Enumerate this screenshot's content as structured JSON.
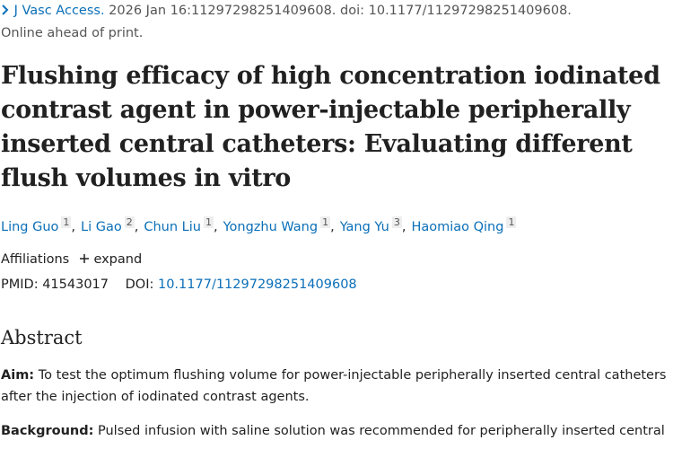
{
  "citation": {
    "journal": "J Vasc Access.",
    "details": "2026 Jan 16:11297298251409608. doi: 10.1177/11297298251409608."
  },
  "status": "Online ahead of print.",
  "title": "Flushing efficacy of high concentration iodinated contrast agent in power-injectable peripherally inserted central catheters: Evaluating different flush volumes in vitro",
  "authors": {
    "separator": ",",
    "list": [
      {
        "name": "Ling Guo",
        "aff": "1"
      },
      {
        "name": "Li Gao",
        "aff": "2"
      },
      {
        "name": "Chun Liu",
        "aff": "1"
      },
      {
        "name": "Yongzhu Wang",
        "aff": "1"
      },
      {
        "name": "Yang Yu",
        "aff": "3"
      },
      {
        "name": "Haomiao Qing",
        "aff": "1"
      }
    ]
  },
  "affiliations": {
    "label": "Affiliations",
    "toggle": "expand"
  },
  "ids": {
    "pmid_label": "PMID:",
    "pmid": "41543017",
    "doi_label": "DOI:",
    "doi": "10.1177/11297298251409608"
  },
  "abstract": {
    "heading": "Abstract",
    "sections": [
      {
        "label": "Aim:",
        "text": "To test the optimum flushing volume for power-injectable peripherally inserted central catheters after the injection of iodinated contrast agents."
      },
      {
        "label": "Background:",
        "text": "Pulsed infusion with saline solution was recommended for peripherally inserted central"
      }
    ]
  }
}
